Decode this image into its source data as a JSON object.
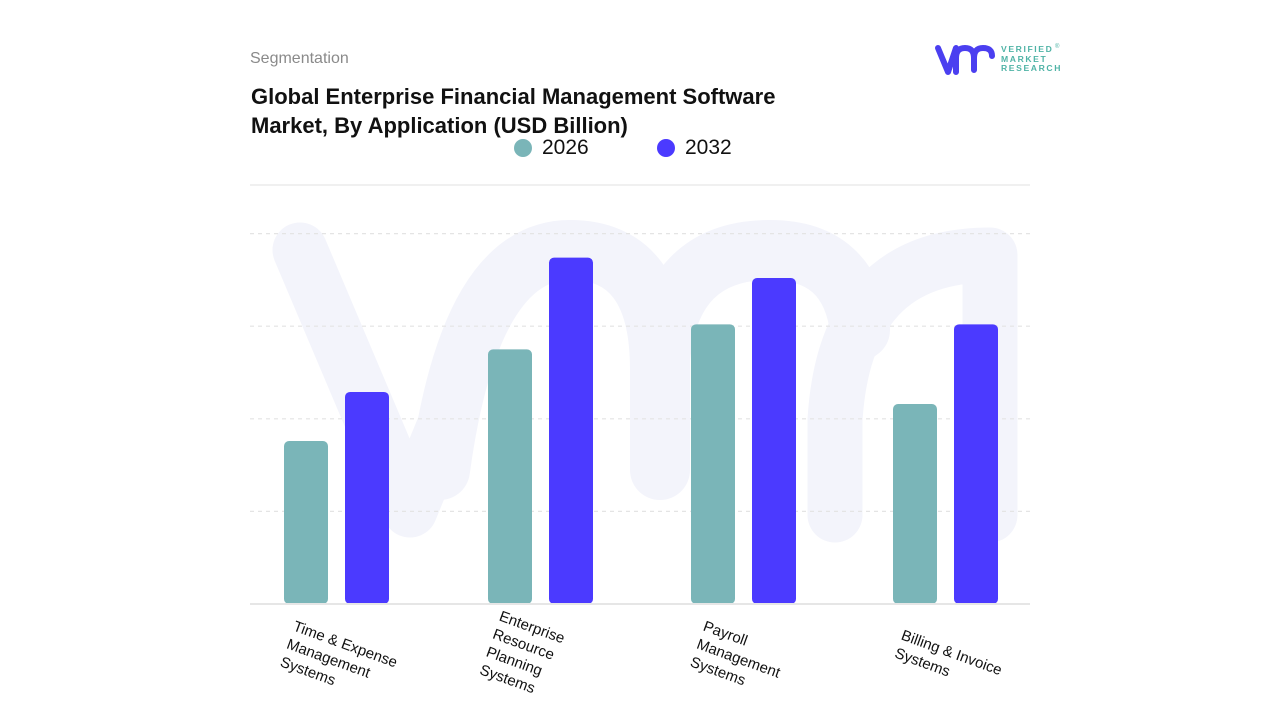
{
  "header": {
    "section_label": "Segmentation",
    "title_line1": "Global Enterprise Financial Management Software",
    "title_line2": "Market, By Application (USD Billion)"
  },
  "logo": {
    "mark": "vmr",
    "line1": "VERIFIED",
    "line2": "MARKET",
    "line3": "RESEARCH",
    "registered": "®",
    "mark_color": "#4b3ff0",
    "text_color": "#4fb3a6"
  },
  "legend": [
    {
      "label": "2026",
      "color": "#7ab5b8"
    },
    {
      "label": "2032",
      "color": "#4b3aff"
    }
  ],
  "chart_data": {
    "type": "bar",
    "title": "Global Enterprise Financial Management Software Market, By Application (USD Billion)",
    "xlabel": "",
    "ylabel": "",
    "categories": [
      "Time & Expense Management Systems",
      "Enterprise Resource Planning Systems",
      "Payroll Management Systems",
      "Billing & Invoice Systems"
    ],
    "category_label_lines": [
      [
        "Time & Expense",
        "Management",
        "Systems"
      ],
      [
        "Enterprise",
        "Resource",
        "Planning",
        "Systems"
      ],
      [
        "Payroll",
        "Management",
        "Systems"
      ],
      [
        "Billing & Invoice",
        "Systems"
      ]
    ],
    "series": [
      {
        "name": "2026",
        "color": "#7ab5b8",
        "values": [
          1.76,
          2.75,
          3.02,
          2.16
        ]
      },
      {
        "name": "2032",
        "color": "#4b3aff",
        "values": [
          2.29,
          3.74,
          3.52,
          3.02
        ]
      }
    ],
    "ylim": [
      0,
      4.5
    ],
    "gridlines": [
      1,
      2,
      3,
      4
    ],
    "grid": true,
    "y_tick_labels_visible": false,
    "legend_position": "top",
    "note": "No y-axis scale shown; values are relative estimates in gridline units"
  }
}
